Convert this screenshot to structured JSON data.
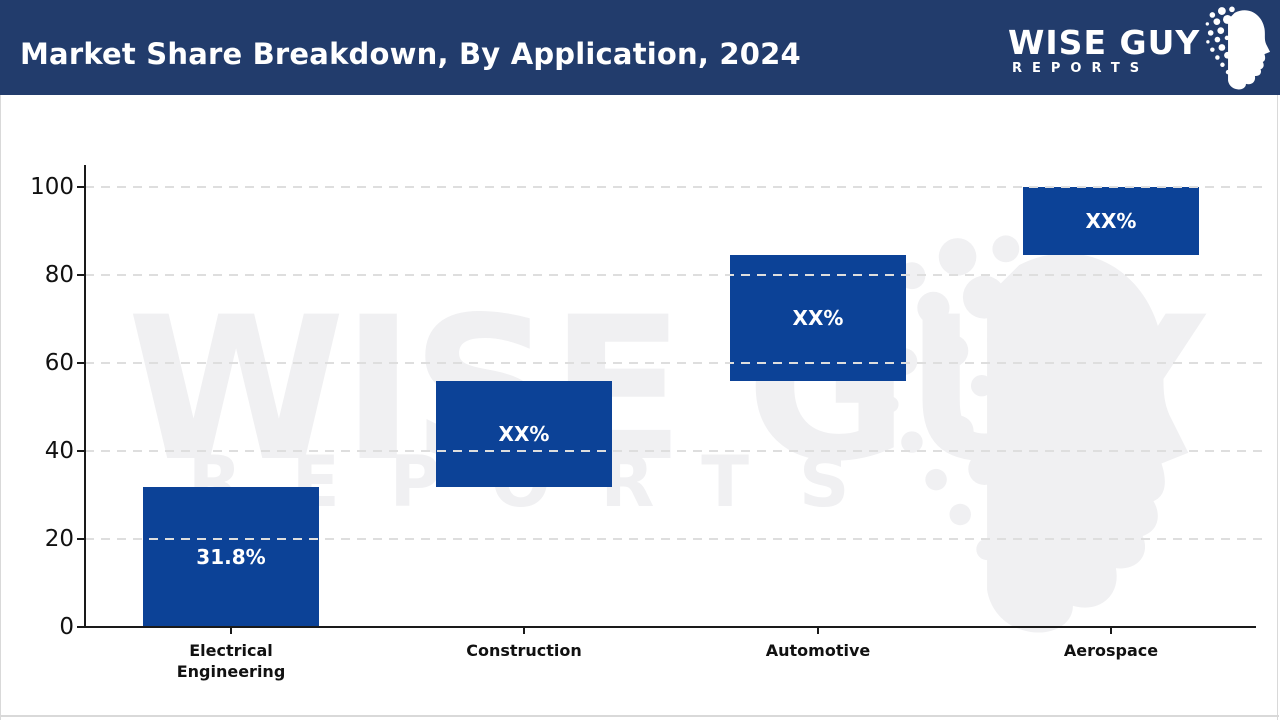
{
  "header": {
    "title": "Market Share Breakdown, By Application, 2024",
    "background_color": "#223C6C",
    "logo": {
      "wordmark": "WISE GUY",
      "subtext": "REPORTS"
    }
  },
  "watermark": {
    "wordmark": "WISE GUY",
    "subtext": "REPORTS"
  },
  "chart_data": {
    "type": "bar",
    "subtype": "floating-waterfall",
    "title": "Market Share Breakdown, By Application, 2024",
    "categories": [
      "Electrical Engineering",
      "Construction",
      "Automotive",
      "Aerospace"
    ],
    "series": [
      {
        "name": "Market Share",
        "segments": [
          {
            "category": "Electrical Engineering",
            "start": 0,
            "end": 31.8,
            "label": "31.8%"
          },
          {
            "category": "Construction",
            "start": 31.8,
            "end": 55.9,
            "label": "XX%"
          },
          {
            "category": "Automotive",
            "start": 55.9,
            "end": 84.5,
            "label": "XX%"
          },
          {
            "category": "Aerospace",
            "start": 84.5,
            "end": 100,
            "label": "XX%"
          }
        ]
      }
    ],
    "xlabel": "",
    "ylabel": "",
    "ylim": [
      0,
      100
    ],
    "yticks": [
      0,
      20,
      40,
      60,
      80,
      100
    ],
    "grid": "horizontal-dashed",
    "legend": "none",
    "bar_color": "#0C4297",
    "bar_label_color": "#FFFFFF",
    "axis_color": "#1A1A1A",
    "gridline_color": "#DEDEDE"
  }
}
